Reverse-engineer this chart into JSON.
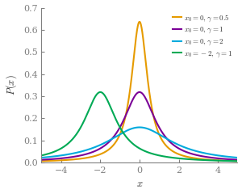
{
  "x_range": [
    -5.0,
    5.0
  ],
  "x_ticks": [
    -4,
    -2,
    0,
    2,
    4
  ],
  "y_range": [
    0,
    0.7
  ],
  "y_ticks": [
    0.0,
    0.1,
    0.2,
    0.3,
    0.4,
    0.5,
    0.6,
    0.7
  ],
  "xlabel": "$x$",
  "ylabel": "$P(x)$",
  "curves": [
    {
      "x0": 0,
      "gamma": 0.5,
      "color": "#E69B00",
      "label": "$x_0 = 0,\\, \\gamma = 0.5$"
    },
    {
      "x0": 0,
      "gamma": 1,
      "color": "#7B0097",
      "label": "$x_0 = 0,\\, \\gamma = 1$"
    },
    {
      "x0": 0,
      "gamma": 2,
      "color": "#00AADD",
      "label": "$x_0 = 0,\\, \\gamma = 2$"
    },
    {
      "x0": -2,
      "gamma": 1,
      "color": "#00AA55",
      "label": "$x_0 = -2,\\, \\gamma = 1$"
    }
  ],
  "figsize": [
    3.0,
    2.4
  ],
  "dpi": 100,
  "spine_color": "#808080",
  "tick_color": "#808080",
  "label_fontsize": 9,
  "tick_fontsize": 8,
  "legend_fontsize": 6.5,
  "linewidth": 1.5
}
